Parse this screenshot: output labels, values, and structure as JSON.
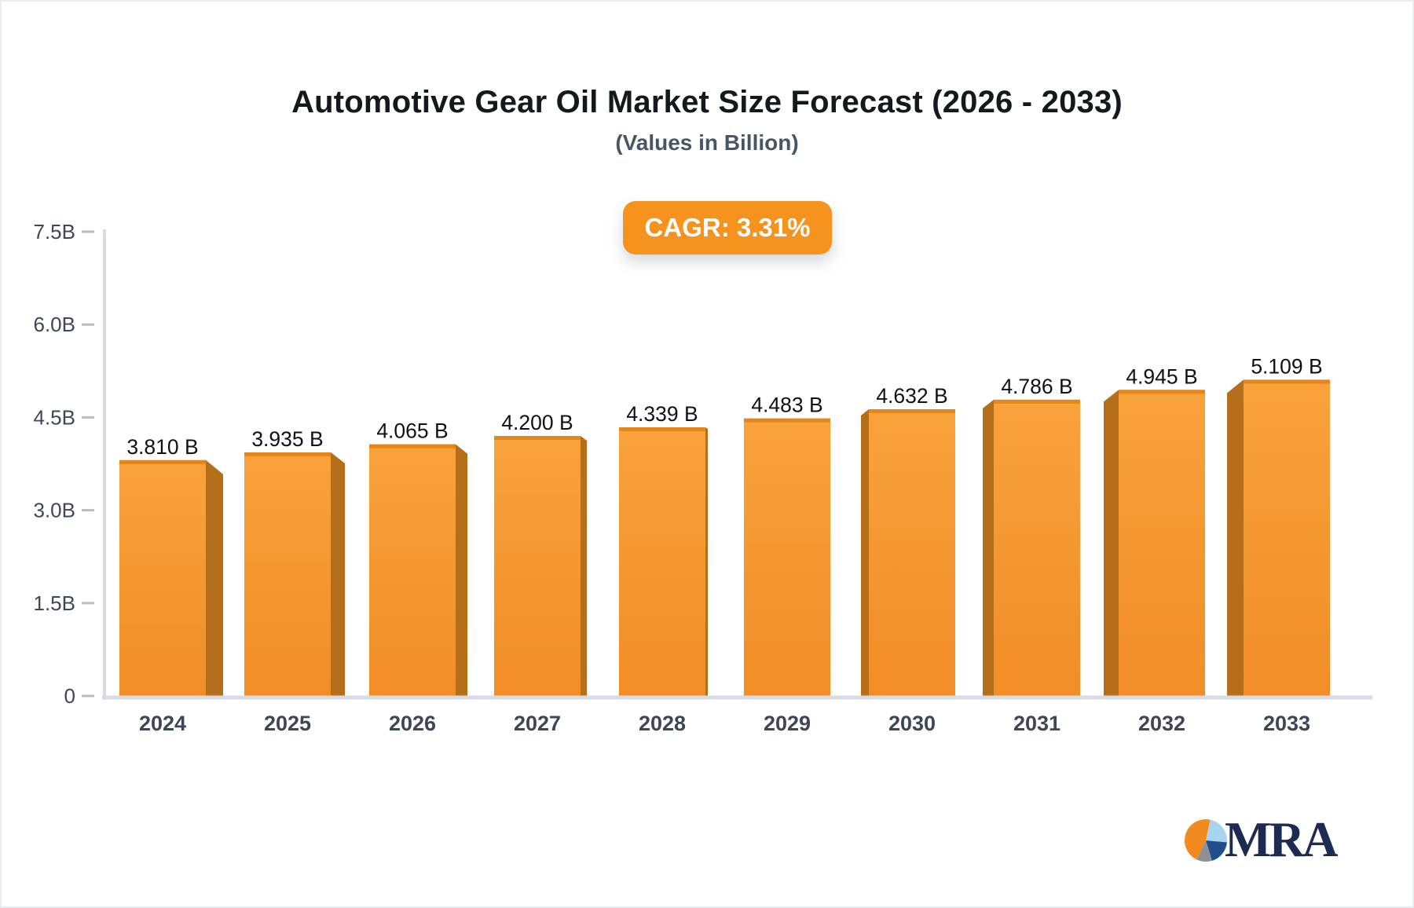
{
  "page": {
    "background": "#ffffff",
    "border_color": "#e9ecf1"
  },
  "header": {
    "title": "Automotive Gear Oil Market Size Forecast (2026 - 2033)",
    "subtitle": "(Values in Billion)",
    "cagr_badge": "CAGR: 3.31%",
    "badge_color": "#f6921e",
    "title_color": "#15181d",
    "subtitle_color": "#4a5563"
  },
  "chart_data": {
    "type": "bar",
    "title": "Automotive Gear Oil Market Size Forecast (2026 - 2033)",
    "subtitle": "(Values in Billion)",
    "annotation": "CAGR: 3.31%",
    "categories": [
      "2024",
      "2025",
      "2026",
      "2027",
      "2028",
      "2029",
      "2030",
      "2031",
      "2032",
      "2033"
    ],
    "values": [
      3.81,
      3.935,
      4.065,
      4.2,
      4.339,
      4.483,
      4.632,
      4.786,
      4.945,
      5.109
    ],
    "value_labels": [
      "3.810 B",
      "3.935 B",
      "4.065 B",
      "4.200 B",
      "4.339 B",
      "4.483 B",
      "4.632 B",
      "4.786 B",
      "4.945 B",
      "5.109 B"
    ],
    "xlabel": "",
    "ylabel": "",
    "ylim": [
      0,
      7.5
    ],
    "grid": false,
    "legend": null,
    "yticks": [
      {
        "value": 0,
        "label": "0"
      },
      {
        "value": 1.5,
        "label": "1.5B"
      },
      {
        "value": 3.0,
        "label": "3.0B"
      },
      {
        "value": 4.5,
        "label": "4.5B"
      },
      {
        "value": 6.0,
        "label": "6.0B"
      },
      {
        "value": 7.5,
        "label": "7.5B"
      }
    ],
    "colors": {
      "bar_front_top": "#f8a23c",
      "bar_front_bottom": "#f18d27",
      "bar_side": "#b56f1a",
      "bar_top_edge": "#e5861a",
      "axis_line": "#d8dbe1",
      "tick_dash": "#b6bcc6",
      "tick_text": "#3e4759",
      "year_text": "#3c4656",
      "value_text": "#101114"
    }
  },
  "logo": {
    "text": "MRA",
    "text_color": "#1d2a52",
    "pie_slices": [
      {
        "name": "orange-slice",
        "color": "#f28a1f",
        "start": 205,
        "end": 372
      },
      {
        "name": "light-blue-slice",
        "color": "#a9d4ef",
        "start": 12,
        "end": 95
      },
      {
        "name": "dark-blue-slice",
        "color": "#204e8d",
        "start": 95,
        "end": 163
      },
      {
        "name": "gray-slice",
        "color": "#8e9096",
        "start": 163,
        "end": 205
      }
    ]
  }
}
